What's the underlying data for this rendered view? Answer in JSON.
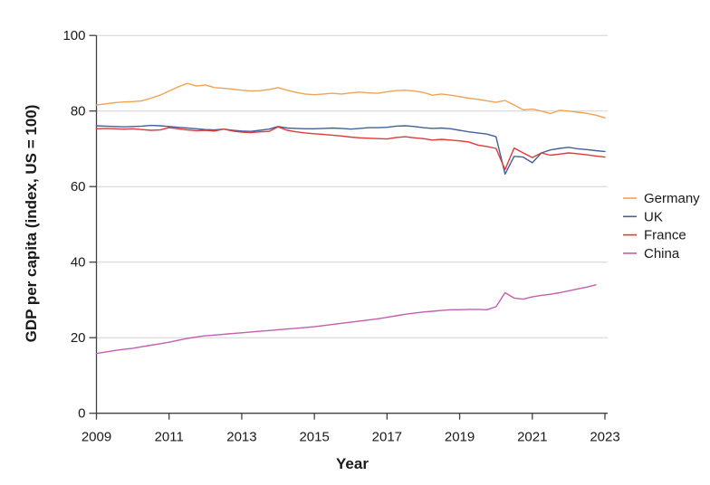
{
  "chart_data": {
    "type": "line",
    "title": "",
    "xlabel": "Year",
    "ylabel": "GDP per capita (index, US = 100)",
    "xlim": [
      2009,
      2023
    ],
    "ylim": [
      0,
      100
    ],
    "xticks": [
      2009,
      2011,
      2013,
      2015,
      2017,
      2019,
      2021,
      2023
    ],
    "yticks": [
      0,
      20,
      40,
      60,
      80,
      100
    ],
    "grid": "horizontal-only",
    "legend_position": "right-outside",
    "series": [
      {
        "name": "Germany",
        "color": "#F0A353",
        "x_start": 2009,
        "x_step": 0.25,
        "values": [
          81.6,
          81.9,
          82.2,
          82.4,
          82.5,
          82.7,
          83.4,
          84.2,
          85.3,
          86.4,
          87.3,
          86.6,
          86.9,
          86.2,
          86.0,
          85.8,
          85.5,
          85.3,
          85.4,
          85.7,
          86.2,
          85.5,
          84.9,
          84.5,
          84.3,
          84.5,
          84.7,
          84.5,
          84.8,
          85.0,
          84.8,
          84.7,
          85.1,
          85.4,
          85.5,
          85.3,
          84.9,
          84.2,
          84.5,
          84.2,
          83.8,
          83.4,
          83.1,
          82.7,
          82.3,
          82.8,
          81.6,
          80.3,
          80.5,
          80.0,
          79.3,
          80.2,
          80.0,
          79.7,
          79.4,
          78.9,
          78.2
        ]
      },
      {
        "name": "UK",
        "color": "#43609C",
        "x_start": 2009,
        "x_step": 0.25,
        "values": [
          76.1,
          76.0,
          75.9,
          75.8,
          75.9,
          76.0,
          76.2,
          76.1,
          75.9,
          75.7,
          75.5,
          75.3,
          75.1,
          75.0,
          75.2,
          74.9,
          74.7,
          74.6,
          74.9,
          75.2,
          75.9,
          75.5,
          75.4,
          75.3,
          75.3,
          75.4,
          75.5,
          75.4,
          75.2,
          75.4,
          75.6,
          75.6,
          75.7,
          76.0,
          76.1,
          75.9,
          75.6,
          75.4,
          75.5,
          75.3,
          74.9,
          74.5,
          74.2,
          73.9,
          73.2,
          63.3,
          68.0,
          67.8,
          66.3,
          68.9,
          69.7,
          70.1,
          70.4,
          70.0,
          69.8,
          69.5,
          69.3
        ]
      },
      {
        "name": "France",
        "color": "#E0393B",
        "x_start": 2009,
        "x_step": 0.25,
        "values": [
          75.3,
          75.4,
          75.3,
          75.2,
          75.3,
          75.1,
          74.9,
          75.0,
          75.6,
          75.3,
          75.0,
          74.8,
          74.9,
          74.7,
          75.2,
          74.7,
          74.4,
          74.3,
          74.5,
          74.6,
          75.8,
          74.9,
          74.5,
          74.2,
          74.0,
          73.8,
          73.6,
          73.4,
          73.1,
          72.9,
          72.8,
          72.7,
          72.6,
          73.0,
          73.2,
          72.9,
          72.7,
          72.3,
          72.5,
          72.3,
          72.1,
          71.8,
          71.0,
          70.6,
          70.1,
          64.5,
          70.2,
          68.9,
          67.7,
          68.9,
          68.3,
          68.6,
          68.9,
          68.7,
          68.4,
          68.1,
          67.8
        ]
      },
      {
        "name": "China",
        "color": "#C35FAE",
        "x_start": 2009,
        "x_step": 0.25,
        "values": [
          15.8,
          16.2,
          16.6,
          16.9,
          17.2,
          17.6,
          18.0,
          18.4,
          18.8,
          19.3,
          19.8,
          20.2,
          20.5,
          20.7,
          20.9,
          21.1,
          21.3,
          21.5,
          21.7,
          21.9,
          22.1,
          22.3,
          22.5,
          22.7,
          22.9,
          23.2,
          23.5,
          23.8,
          24.1,
          24.4,
          24.7,
          25.0,
          25.4,
          25.8,
          26.2,
          26.5,
          26.8,
          27.0,
          27.2,
          27.4,
          27.4,
          27.5,
          27.5,
          27.4,
          28.2,
          31.9,
          30.5,
          30.2,
          30.8,
          31.2,
          31.5,
          31.9,
          32.4,
          32.9,
          33.4,
          34.0
        ]
      }
    ]
  },
  "colors": {
    "text": "#1a1a1a",
    "axis": "#404040",
    "grid": "#d4d4d4",
    "background": "#ffffff"
  }
}
